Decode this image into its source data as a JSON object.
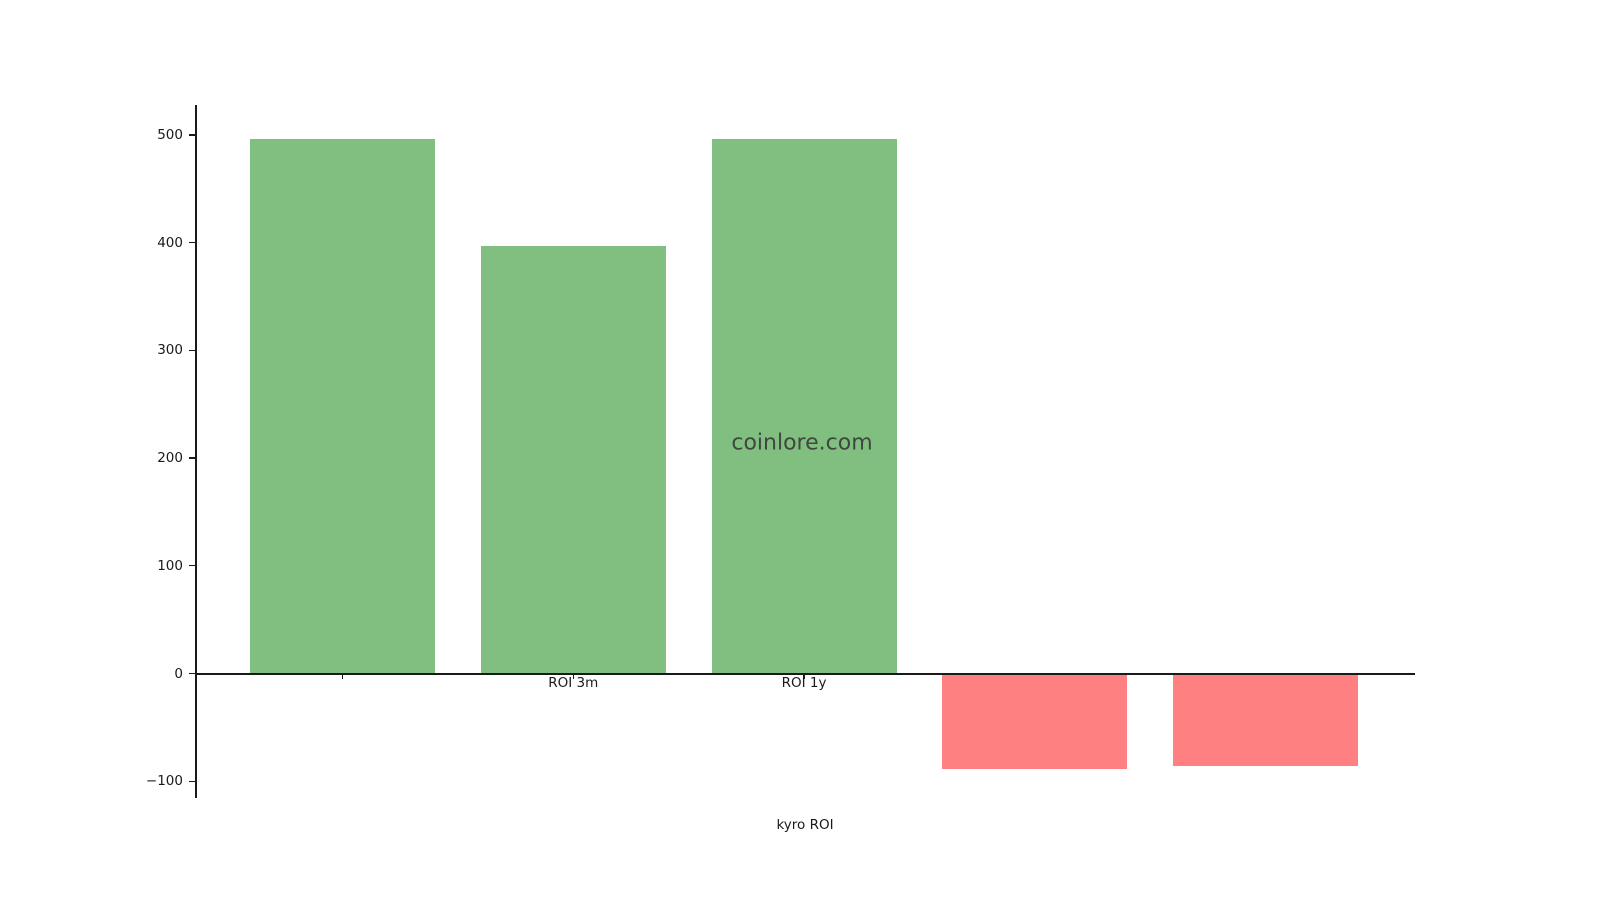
{
  "chart_data": {
    "type": "bar",
    "title": "",
    "xlabel": "kyro ROI",
    "ylabel": "",
    "categories": [
      "",
      "ROI 3m",
      "ROI 1y",
      "",
      ""
    ],
    "values": [
      496,
      397,
      496,
      -89,
      -86
    ],
    "bar_colors": [
      "#80bf80",
      "#80bf80",
      "#80bf80",
      "#ff8080",
      "#ff8080"
    ],
    "positive_color": "#80bf80",
    "negative_color": "#ff8080",
    "yticks": [
      500,
      400,
      300,
      200,
      100,
      0,
      -100
    ],
    "ylim": [
      -116,
      528
    ],
    "xticks": [
      {
        "index": 0,
        "label": ""
      },
      {
        "index": 1,
        "label": "ROI 3m"
      },
      {
        "index": 2,
        "label": "ROI 1y"
      }
    ],
    "grid": false,
    "legend": null,
    "watermark": "coinlore.com",
    "axis_color": "#1a1a1a",
    "background_color": "#ffffff"
  }
}
